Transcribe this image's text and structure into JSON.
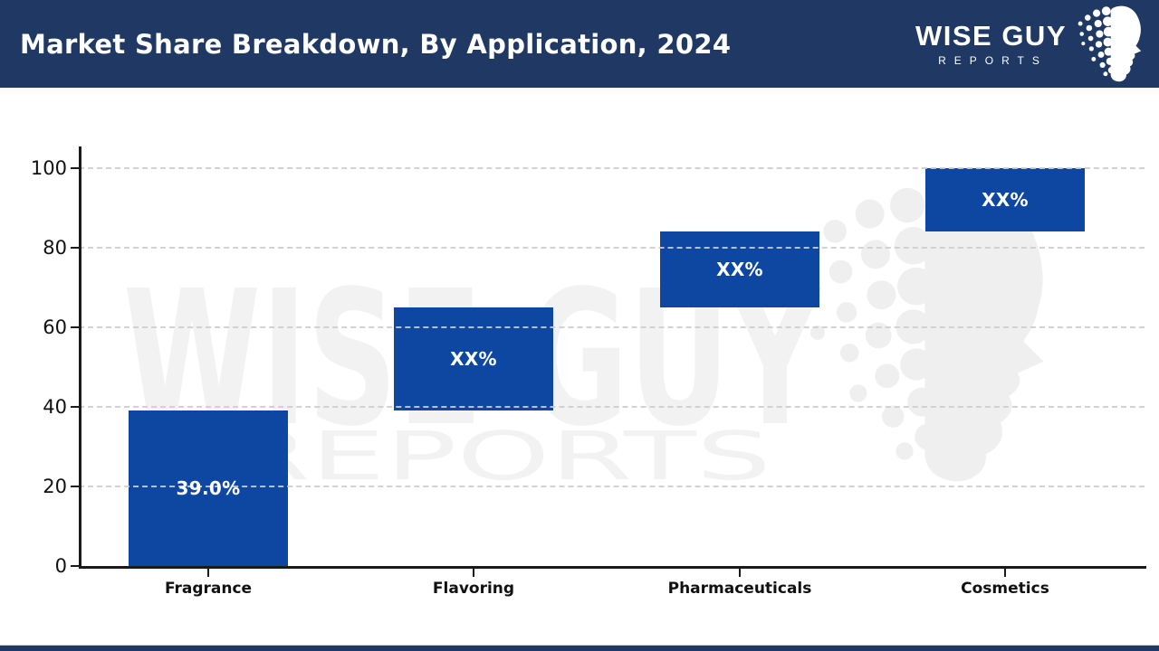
{
  "header": {
    "title": "Market Share Breakdown, By Application, 2024",
    "logo": {
      "line1": "WISE GUY",
      "line2": "REPORTS"
    }
  },
  "watermark": {
    "line1": "WISE GUY",
    "line2": "REPORTS"
  },
  "colors": {
    "header_bg": "#1f3864",
    "footer_bg": "#1f3864",
    "bar": "#0d47a1",
    "bar_label": "#ffffff",
    "grid_line": "#cccccc",
    "axis": "#1a1a1a",
    "watermark": "#f2f2f2"
  },
  "chart_data": {
    "type": "bar",
    "subtype": "waterfall",
    "title": "Market Share Breakdown, By Application, 2024",
    "categories": [
      "Fragrance",
      "Flavoring",
      "Pharmaceuticals",
      "Cosmetics"
    ],
    "bars": [
      {
        "category": "Fragrance",
        "start": 0,
        "end": 39,
        "label": "39.0%"
      },
      {
        "category": "Flavoring",
        "start": 39,
        "end": 65,
        "label": "XX%"
      },
      {
        "category": "Pharmaceuticals",
        "start": 65,
        "end": 84,
        "label": "XX%"
      },
      {
        "category": "Cosmetics",
        "start": 84,
        "end": 100,
        "label": "XX%"
      }
    ],
    "yticks": [
      0,
      20,
      40,
      60,
      80,
      100
    ],
    "ylim": [
      0,
      105
    ],
    "xlabel": "",
    "ylabel": "",
    "grid": "horizontal-dashed-above-bars",
    "legend": "none"
  }
}
